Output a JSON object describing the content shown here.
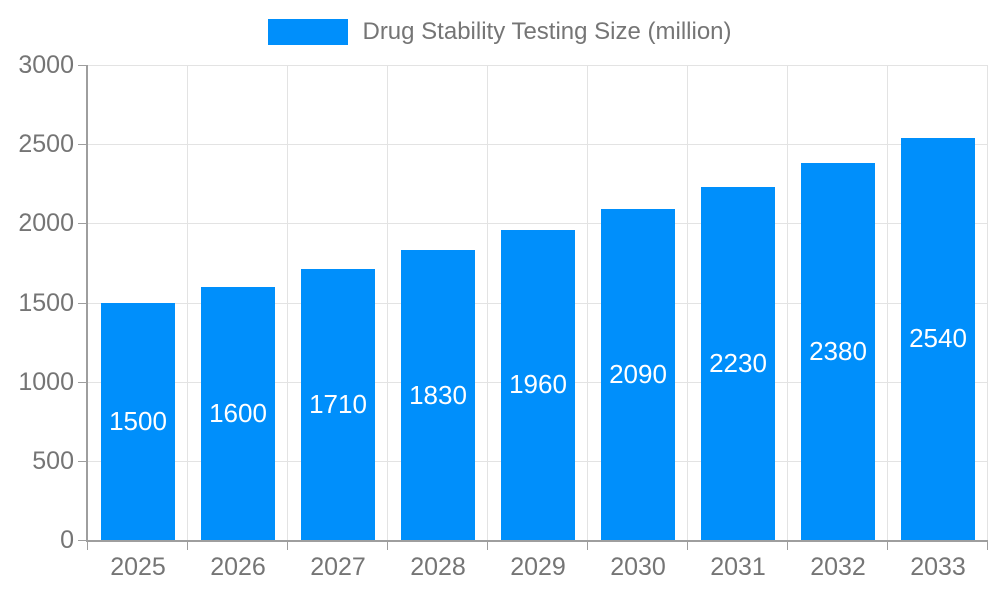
{
  "chart_data": {
    "type": "bar",
    "title": "Drug Stability Testing Size (million)",
    "categories": [
      "2025",
      "2026",
      "2027",
      "2028",
      "2029",
      "2030",
      "2031",
      "2032",
      "2033"
    ],
    "values": [
      1500,
      1600,
      1710,
      1830,
      1960,
      2090,
      2230,
      2380,
      2540
    ],
    "xlabel": "",
    "ylabel": "",
    "ylim": [
      0,
      3000
    ],
    "ytick_step": 500,
    "ytick_labels": [
      "0",
      "500",
      "1000",
      "1500",
      "2000",
      "2500",
      "3000"
    ],
    "grid": true,
    "legend_position": "top-center",
    "value_label_style": "inside-center-white",
    "colors": {
      "bar": "#008FFB",
      "value_label": "#ffffff",
      "axis_text": "#757575",
      "legend_text": "#757575",
      "axis_line": "#9e9e9e",
      "gridline": "#e3e3e3",
      "background": "#ffffff"
    }
  }
}
